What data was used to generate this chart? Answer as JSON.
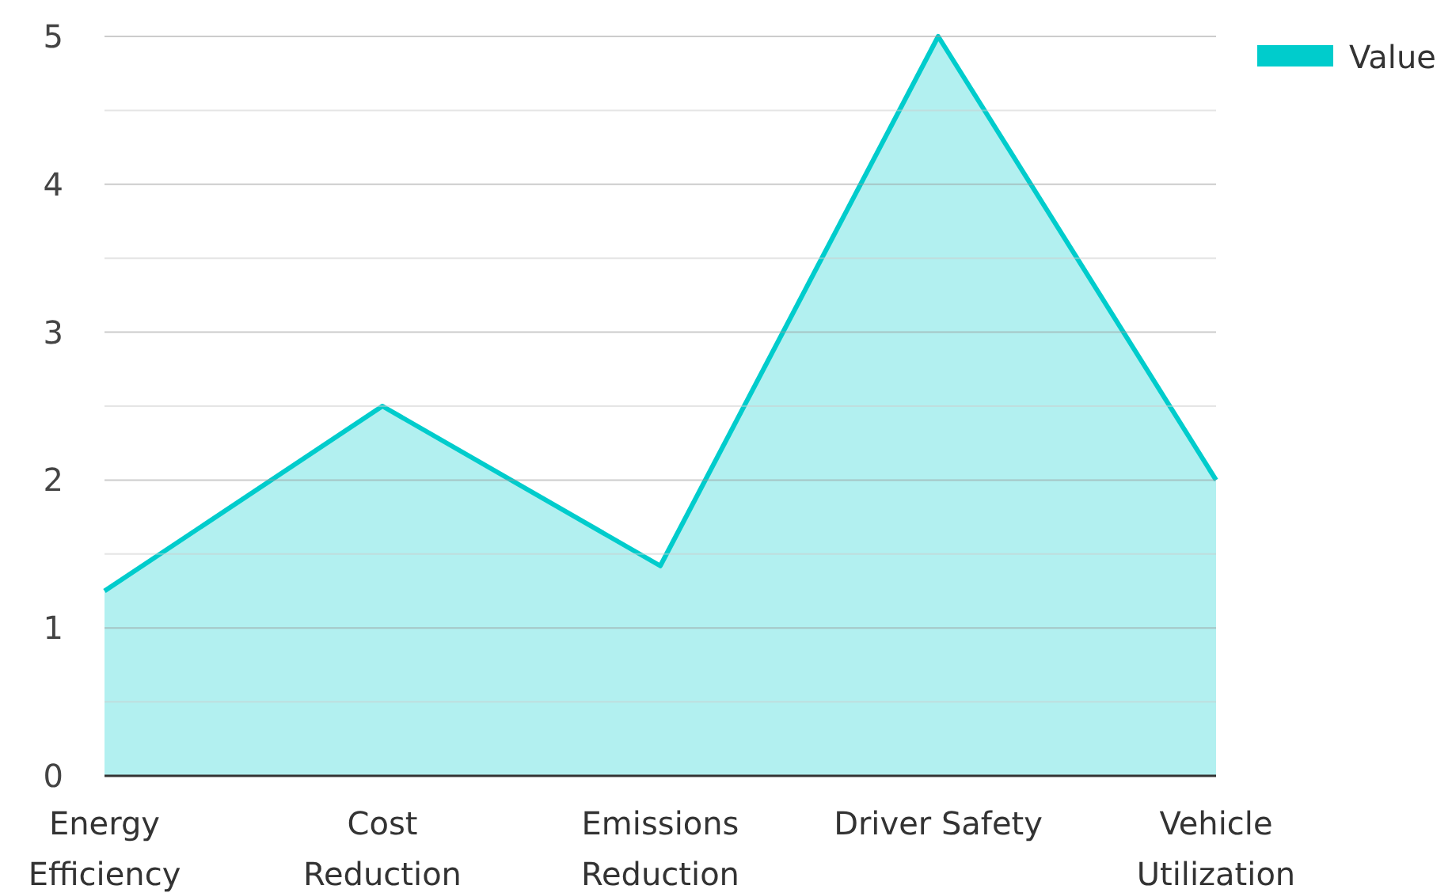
{
  "chart_data": {
    "type": "area",
    "categories": [
      "Energy Efficiency",
      "Cost Reduction",
      "Emissions Reduction",
      "Driver Safety",
      "Vehicle Utilization"
    ],
    "series": [
      {
        "name": "Value",
        "color": "#00cccc",
        "values": [
          1.25,
          2.5,
          1.42,
          5,
          2
        ]
      }
    ],
    "ylim": [
      0,
      5
    ],
    "yticks": [
      0,
      {
        "value": 0.5,
        "label": null
      },
      1,
      {
        "value": 1.5,
        "label": null
      },
      2,
      {
        "value": 2.5,
        "label": null
      },
      3,
      {
        "value": 3.5,
        "label": null
      },
      4,
      {
        "value": 4.5,
        "label": null
      },
      5
    ],
    "grid": "y",
    "legend": "top right"
  }
}
